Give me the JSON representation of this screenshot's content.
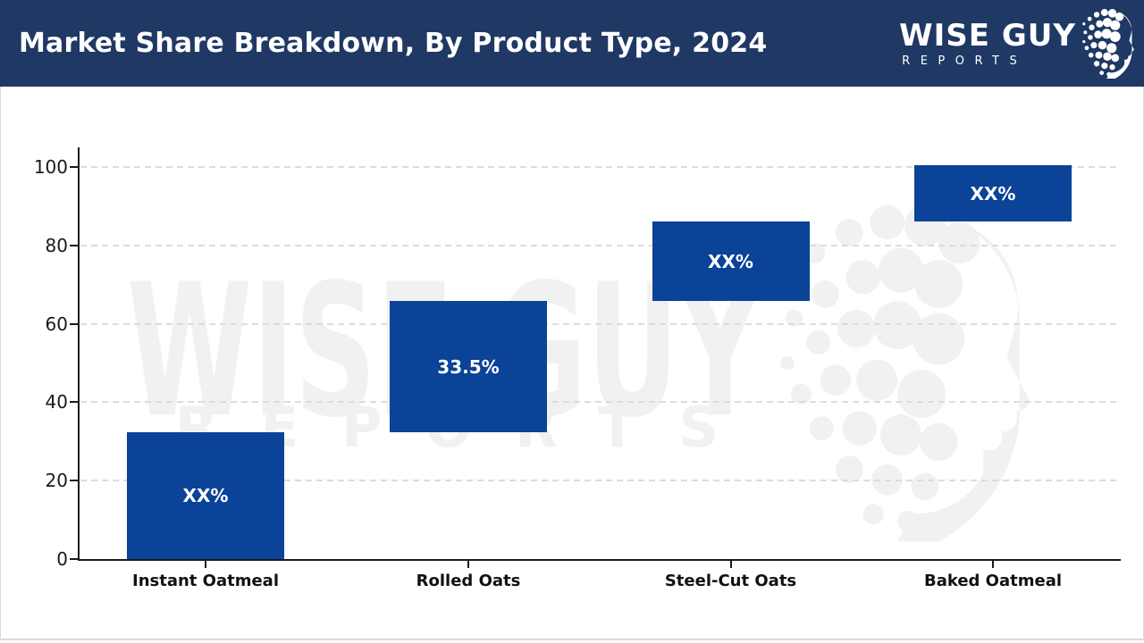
{
  "header": {
    "title": "Market Share Breakdown, By Product Type, 2024",
    "logo": {
      "line1": "WISE GUY",
      "line2": "REPORTS"
    }
  },
  "watermark": {
    "line1": "WISE GUY",
    "line2": "REPORTS"
  },
  "colors": {
    "header_bg": "#1F3864",
    "bar": "#0A4397",
    "bar_label": "#FFFFFF",
    "grid": "#DCDCDC",
    "axis": "#1A1A1A",
    "watermark": "#F1F1F1"
  },
  "chart_data": {
    "type": "bar",
    "subtype": "waterfall",
    "title": "Market Share Breakdown, By Product Type, 2024",
    "xlabel": "",
    "ylabel": "",
    "categories": [
      "Instant Oatmeal",
      "Rolled Oats",
      "Steel-Cut Oats",
      "Baked Oatmeal"
    ],
    "segments": [
      {
        "category": "Instant Oatmeal",
        "start": 0,
        "end": 32.3,
        "label": "XX%"
      },
      {
        "category": "Rolled Oats",
        "start": 32.3,
        "end": 65.8,
        "label": "33.5%"
      },
      {
        "category": "Steel-Cut Oats",
        "start": 65.8,
        "end": 86.1,
        "label": "XX%"
      },
      {
        "category": "Baked Oatmeal",
        "start": 86.1,
        "end": 100.4,
        "label": "XX%"
      }
    ],
    "yticks": [
      0,
      20,
      40,
      60,
      80,
      100
    ],
    "ylim": [
      0,
      105
    ],
    "grid": "horizontal-dashed",
    "legend": "none"
  }
}
